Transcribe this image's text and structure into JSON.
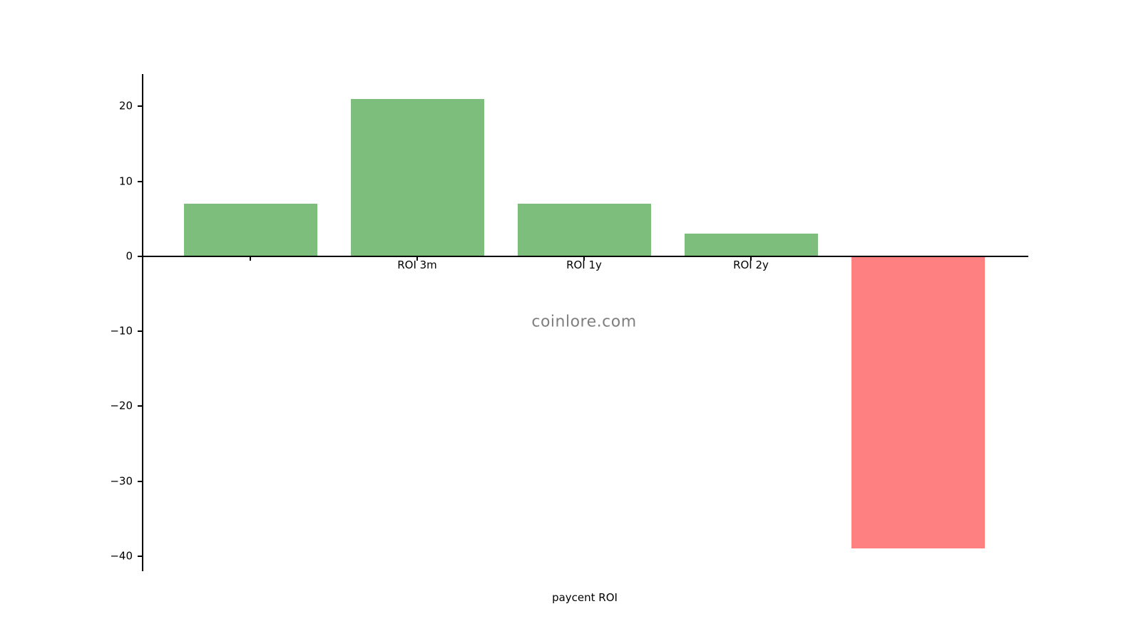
{
  "chart_data": {
    "type": "bar",
    "categories": [
      "",
      "ROI 3m",
      "ROI 1y",
      "ROI 2y",
      ""
    ],
    "values": [
      7,
      21,
      7,
      3,
      -39
    ],
    "bar_colors": [
      "#7dbe7d",
      "#7dbe7d",
      "#7dbe7d",
      "#7dbe7d",
      "#ff8080"
    ],
    "positive_color": "#7dbe7d",
    "negative_color": "#ff8080",
    "title": "",
    "xlabel": "paycent ROI",
    "ylabel": "",
    "ylim": [
      -42,
      24.3
    ],
    "yticks": [
      20,
      10,
      0,
      -10,
      -20,
      -30,
      -40
    ],
    "grid": false,
    "legend": "none"
  },
  "watermark": {
    "text": "coinlore.com",
    "color": "#7f7f7f"
  },
  "axis_color": "#000000"
}
